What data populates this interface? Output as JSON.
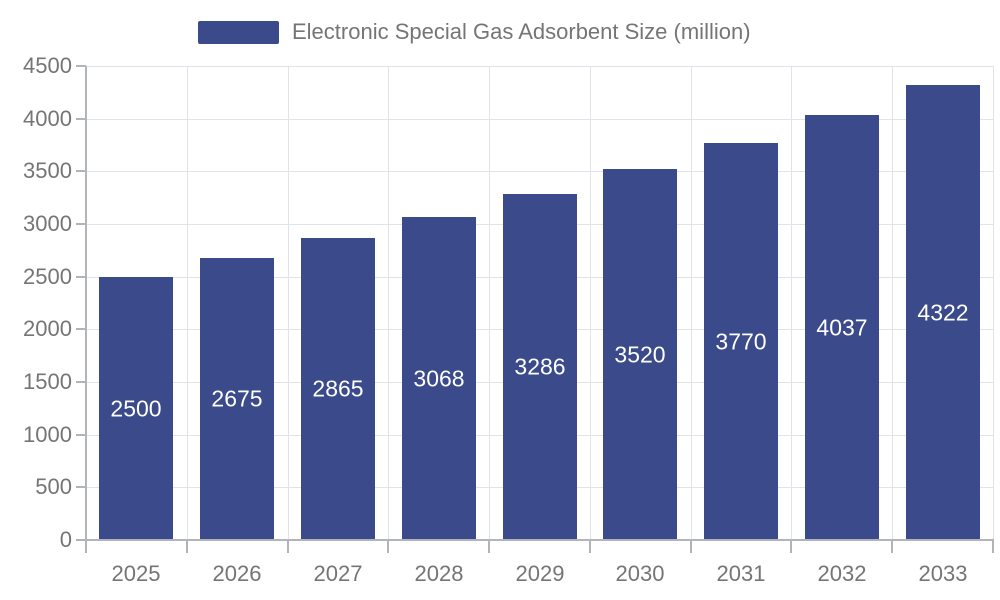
{
  "chart_data": {
    "type": "bar",
    "title": "Electronic Special Gas Adsorbent Size (million)",
    "categories": [
      "2025",
      "2026",
      "2027",
      "2028",
      "2029",
      "2030",
      "2031",
      "2032",
      "2033"
    ],
    "values": [
      2500,
      2675,
      2865,
      3068,
      3286,
      3520,
      3770,
      4037,
      4322
    ],
    "xlabel": "",
    "ylabel": "",
    "ylim": [
      0,
      4500
    ],
    "ytick_step": 500,
    "grid": "on",
    "legend_position": "top-center",
    "bar_label_position": "inside-center",
    "colors": {
      "bar": "#3a4a8a",
      "bar_label": "#ffffff",
      "axis_label": "#757575",
      "legend_text": "#757575",
      "grid_line": "#e0e3e8",
      "axis_line": "#b1b4ba",
      "background": "#ffffff"
    }
  }
}
